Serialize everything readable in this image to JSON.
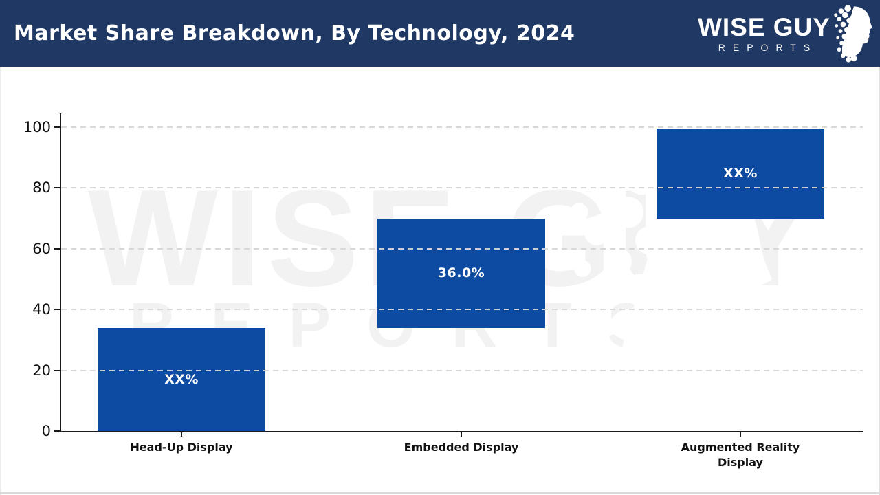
{
  "header": {
    "title": "Market Share Breakdown, By Technology, 2024",
    "logo": {
      "primary": "WISE GUY",
      "secondary": "REPORTS"
    }
  },
  "watermark": {
    "primary": "WISE GUY",
    "secondary": "REPORTS"
  },
  "chart_data": {
    "type": "bar",
    "variant": "stacked-waterfall-segments",
    "title": "Market Share Breakdown, By Technology, 2024",
    "categories": [
      "Head-Up Display",
      "Embedded Display",
      "Augmented Reality Display"
    ],
    "segments": [
      {
        "category": "Head-Up Display",
        "start": 0,
        "end": 34,
        "value_label": "XX%"
      },
      {
        "category": "Embedded Display",
        "start": 34,
        "end": 70,
        "value_label": "36.0%"
      },
      {
        "category": "Augmented Reality Display",
        "start": 70,
        "end": 99.5,
        "value_label": "XX%"
      }
    ],
    "yticks": [
      0,
      20,
      40,
      60,
      80,
      100
    ],
    "ylim": [
      0,
      105
    ],
    "xlabel": "",
    "ylabel": "",
    "grid": "horizontal-dashed",
    "grid_on_top_of_bars": true,
    "legend": "none",
    "bar_color": "#0d4aa1",
    "value_label_color": "#ffffff"
  },
  "colors": {
    "header_bg": "#1f3864",
    "bar": "#0d4aa1",
    "axis": "#1a1a1a",
    "gridline": "#d6d6d6",
    "tick_label": "#111111",
    "watermark": "#f2f2f2",
    "page_border": "#d9d9d9"
  }
}
